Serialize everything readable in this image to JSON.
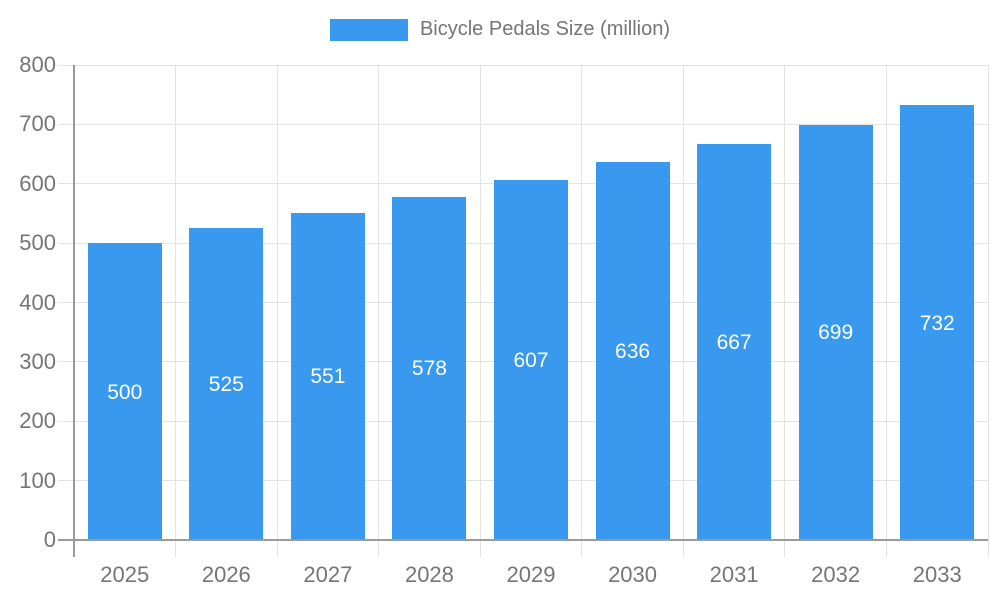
{
  "chart_data": {
    "type": "bar",
    "legend": "Bicycle Pedals Size (million)",
    "categories": [
      "2025",
      "2026",
      "2027",
      "2028",
      "2029",
      "2030",
      "2031",
      "2032",
      "2033"
    ],
    "values": [
      500,
      525,
      551,
      578,
      607,
      636,
      667,
      699,
      732
    ],
    "title": "",
    "xlabel": "",
    "ylabel": "",
    "ylim": [
      0,
      800
    ],
    "ytick_step": 100,
    "ytick_labels": [
      "0",
      "100",
      "200",
      "300",
      "400",
      "500",
      "600",
      "700",
      "800"
    ],
    "grid": true,
    "legend_position": "top-center",
    "bar_labels_inside": true,
    "colors": {
      "bar": "#3999ee",
      "bar_label": "#ffffff",
      "axis_text": "#757575",
      "axis_line": "#9a9a9a",
      "gridline": "#e3e3e3",
      "background": "#ffffff"
    }
  }
}
